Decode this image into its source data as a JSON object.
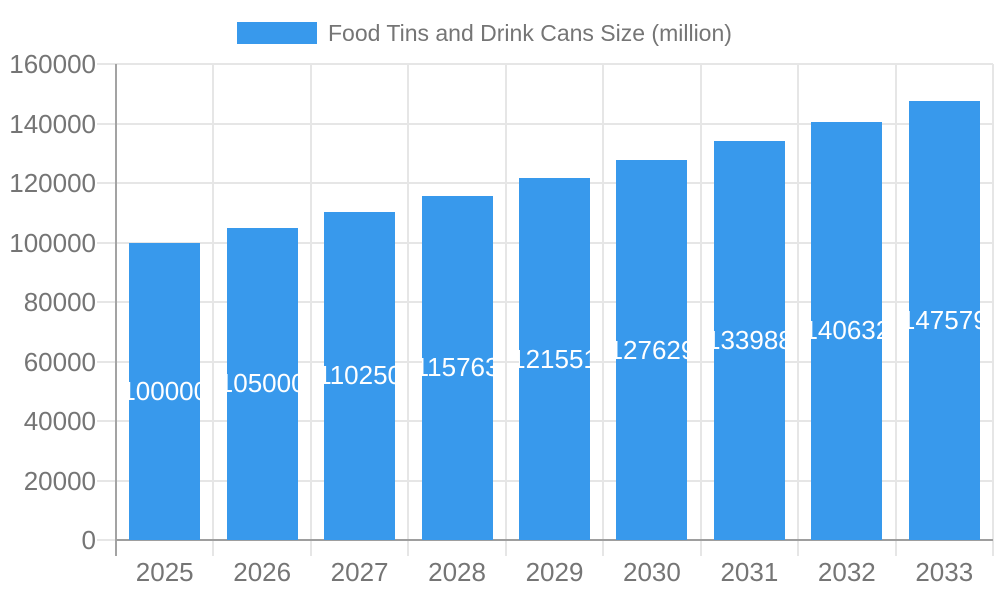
{
  "chart_data": {
    "type": "bar",
    "title": "Food Tins and Drink Cans Size (million)",
    "series_name": "Food Tins and Drink Cans Size (million)",
    "categories": [
      "2025",
      "2026",
      "2027",
      "2028",
      "2029",
      "2030",
      "2031",
      "2032",
      "2033"
    ],
    "values": [
      100000,
      105000,
      110250,
      115763,
      121551,
      127629,
      133988,
      140632,
      147579
    ],
    "xlabel": "",
    "ylabel": "",
    "ylim": [
      0,
      160000
    ],
    "yticks": [
      0,
      20000,
      40000,
      60000,
      80000,
      100000,
      120000,
      140000,
      160000
    ],
    "grid": true,
    "legend_position": "top-center",
    "value_labels": "inside-center-white",
    "colors": {
      "bar": "#3899ec",
      "value_label": "#ffffff",
      "axis_text": "#757575",
      "grid_line": "#e6e6e6",
      "x_axis_line": "#9e9e9e",
      "y_axis_line": "#a3a3a3",
      "background": "#ffffff"
    }
  }
}
